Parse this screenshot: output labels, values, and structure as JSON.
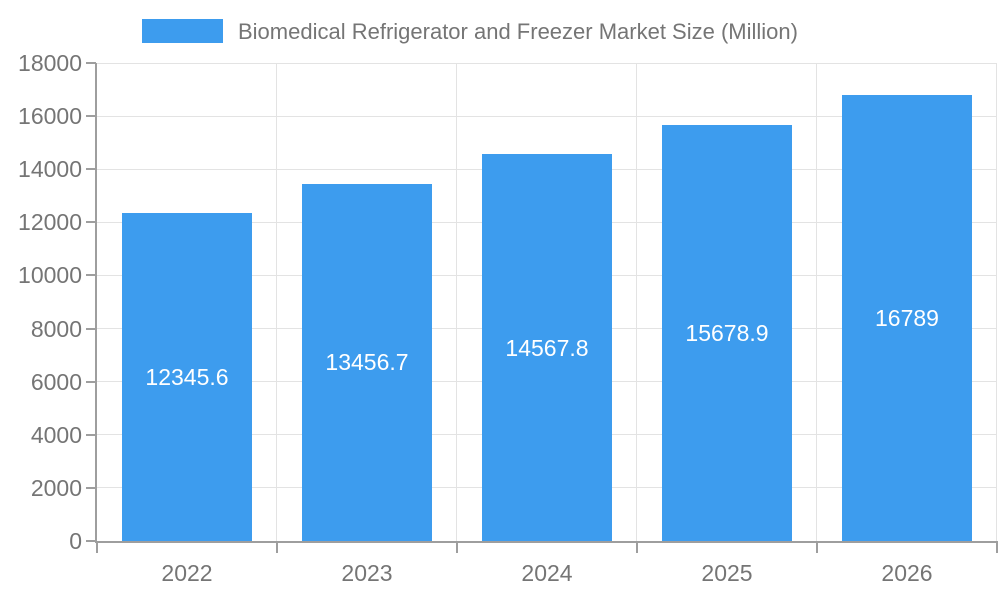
{
  "chart_data": {
    "type": "bar",
    "title": "Biomedical Refrigerator and Freezer Market Size (Million)",
    "categories": [
      "2022",
      "2023",
      "2024",
      "2025",
      "2026"
    ],
    "values": [
      12345.6,
      13456.7,
      14567.8,
      15678.9,
      16789
    ],
    "labels": [
      "12345.6",
      "13456.7",
      "14567.8",
      "15678.9",
      "16789"
    ],
    "xlabel": "",
    "ylabel": "",
    "ylim": [
      0,
      18000
    ],
    "yticks": [
      0,
      2000,
      4000,
      6000,
      8000,
      10000,
      12000,
      14000,
      16000,
      18000
    ],
    "grid": true,
    "legend_position": "top",
    "colors": {
      "bar": "#3d9cee",
      "grid": "#e3e3e3",
      "axis": "#9e9e9e",
      "text": "#757575",
      "bar_label": "#ffffff"
    }
  }
}
